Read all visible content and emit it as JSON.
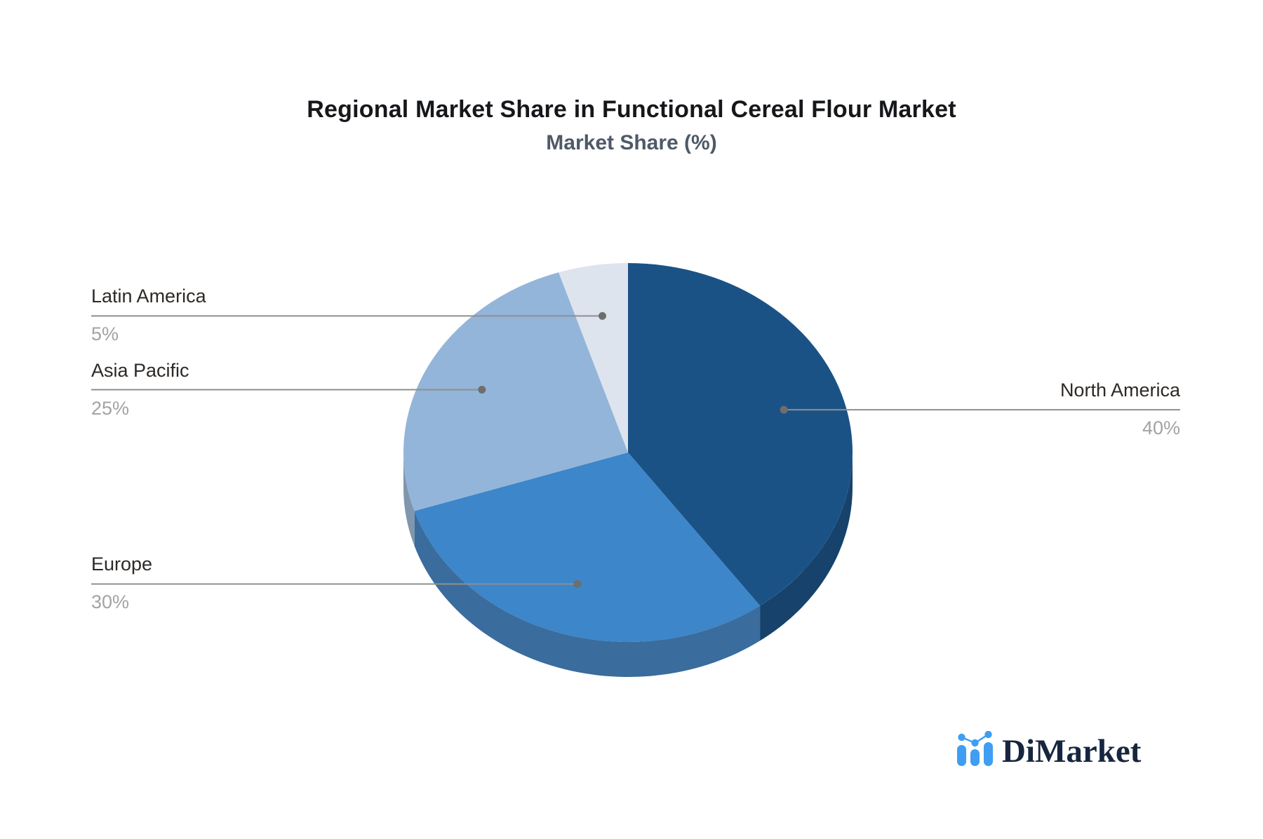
{
  "title": "Regional Market Share in Functional Cereal Flour Market",
  "subtitle": "Market Share (%)",
  "chart_data": {
    "type": "pie",
    "title": "Regional Market Share in Functional Cereal Flour Market",
    "subtitle": "Market Share (%)",
    "unit": "%",
    "effect": "3d",
    "direction": "clockwise",
    "start_angle_deg_from_top": 0,
    "legend_position": "none",
    "labels_style": "callout-lines",
    "slices": [
      {
        "label": "North America",
        "value": 40,
        "display": "40%",
        "color": "#1b5286",
        "side_color": "#16426b",
        "label_side": "right"
      },
      {
        "label": "Europe",
        "value": 30,
        "display": "30%",
        "color": "#3c86c9",
        "side_color": "#3a6c9d",
        "label_side": "left"
      },
      {
        "label": "Asia Pacific",
        "value": 25,
        "display": "25%",
        "color": "#93b5d9",
        "side_color": "#8096ae",
        "label_side": "left"
      },
      {
        "label": "Latin America",
        "value": 5,
        "display": "5%",
        "color": "#dde4ee",
        "side_color": "#c3cfdf",
        "label_side": "left"
      }
    ]
  },
  "callout": {
    "line_color": "#8f8f8f",
    "dot_color": "#6e6e6e",
    "name_color": "#2d2926",
    "value_color": "#a3a3a3"
  },
  "brand": {
    "name": "DiMarket",
    "text_color": "#17263f",
    "icon": "bar-chart-logo-icon",
    "icon_color": "#3f9ef2"
  }
}
